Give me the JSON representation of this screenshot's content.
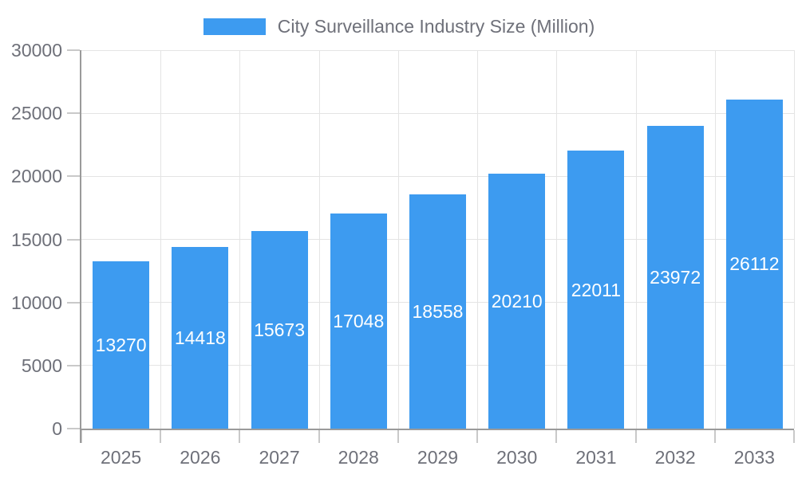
{
  "chart_data": {
    "type": "bar",
    "title": "",
    "legend": "City Surveillance Industry Size (Million)",
    "categories": [
      "2025",
      "2026",
      "2027",
      "2028",
      "2029",
      "2030",
      "2031",
      "2032",
      "2033"
    ],
    "values": [
      13270,
      14418,
      15673,
      17048,
      18558,
      20210,
      22011,
      23972,
      26112
    ],
    "xlabel": "",
    "ylabel": "",
    "ylim": [
      0,
      30000
    ],
    "yticks": [
      0,
      5000,
      10000,
      15000,
      20000,
      25000,
      30000
    ],
    "grid": true,
    "legend_position": "top-center",
    "value_label_position": "inside-middle",
    "colors": {
      "bar": "#3D9BF0",
      "axis": "#9A9A9A",
      "tick": "#C9C9C9",
      "grid": "#E4E4E4",
      "axis_label": "#6E7079",
      "legend_label": "#6E7079",
      "value_label": "#FFFFFF",
      "background": "#FFFFFF"
    }
  }
}
